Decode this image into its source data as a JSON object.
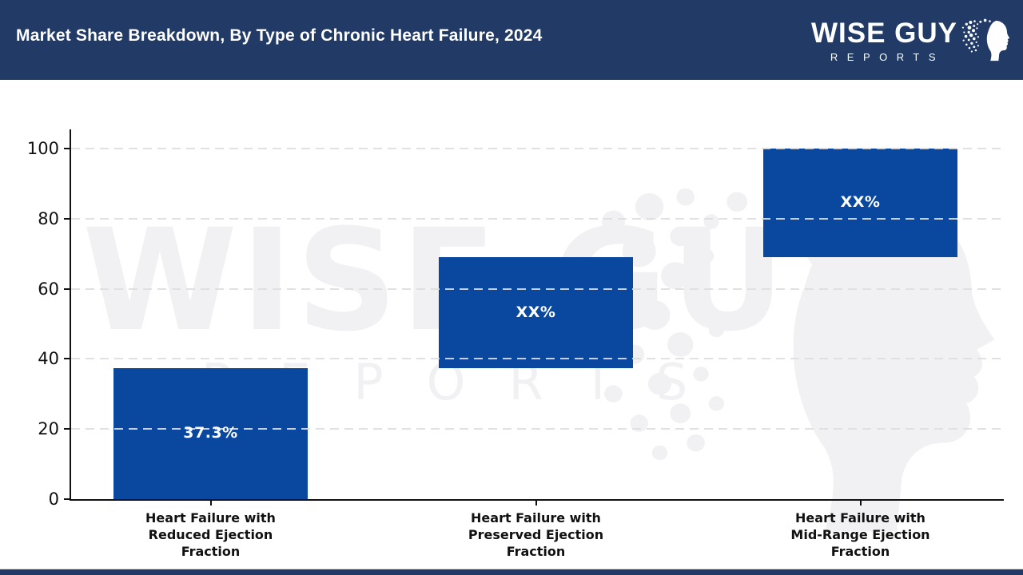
{
  "header": {
    "title": "Market Share Breakdown, By Type of Chronic Heart Failure, 2024",
    "logo": {
      "name": "WISE GUY",
      "subtitle": "REPORTS"
    }
  },
  "watermark": {
    "line1": "WISE GUY",
    "line2": "REPORTS"
  },
  "chart_data": {
    "type": "bar",
    "subtype": "waterfall",
    "title": "Market Share Breakdown, By Type of Chronic Heart Failure, 2024",
    "categories": [
      "Heart Failure with\nReduced Ejection\nFraction",
      "Heart Failure with\nPreserved Ejection\nFraction",
      "Heart Failure with\nMid-Range Ejection\nFraction"
    ],
    "bars": [
      {
        "label": "37.3%",
        "base": 0,
        "top": 37.3,
        "value": 37.3
      },
      {
        "label": "XX%",
        "base": 37.3,
        "top": 69,
        "value": 31.7
      },
      {
        "label": "XX%",
        "base": 69,
        "top": 100,
        "value": 31
      }
    ],
    "yticks": [
      0,
      20,
      40,
      60,
      80,
      100
    ],
    "ylim": [
      0,
      105
    ],
    "xlabel": "",
    "ylabel": "",
    "grid": "horizontal-dashed",
    "legend": "none",
    "bar_color": "#0a479e",
    "label_color": "#ffffff"
  },
  "colors": {
    "header_bg": "#223a66",
    "footer_bg": "#223a66",
    "bar": "#0a479e",
    "grid": "#dedede",
    "axis": "#111111",
    "watermark": "#f1f1f4",
    "label": "#ffffff"
  }
}
